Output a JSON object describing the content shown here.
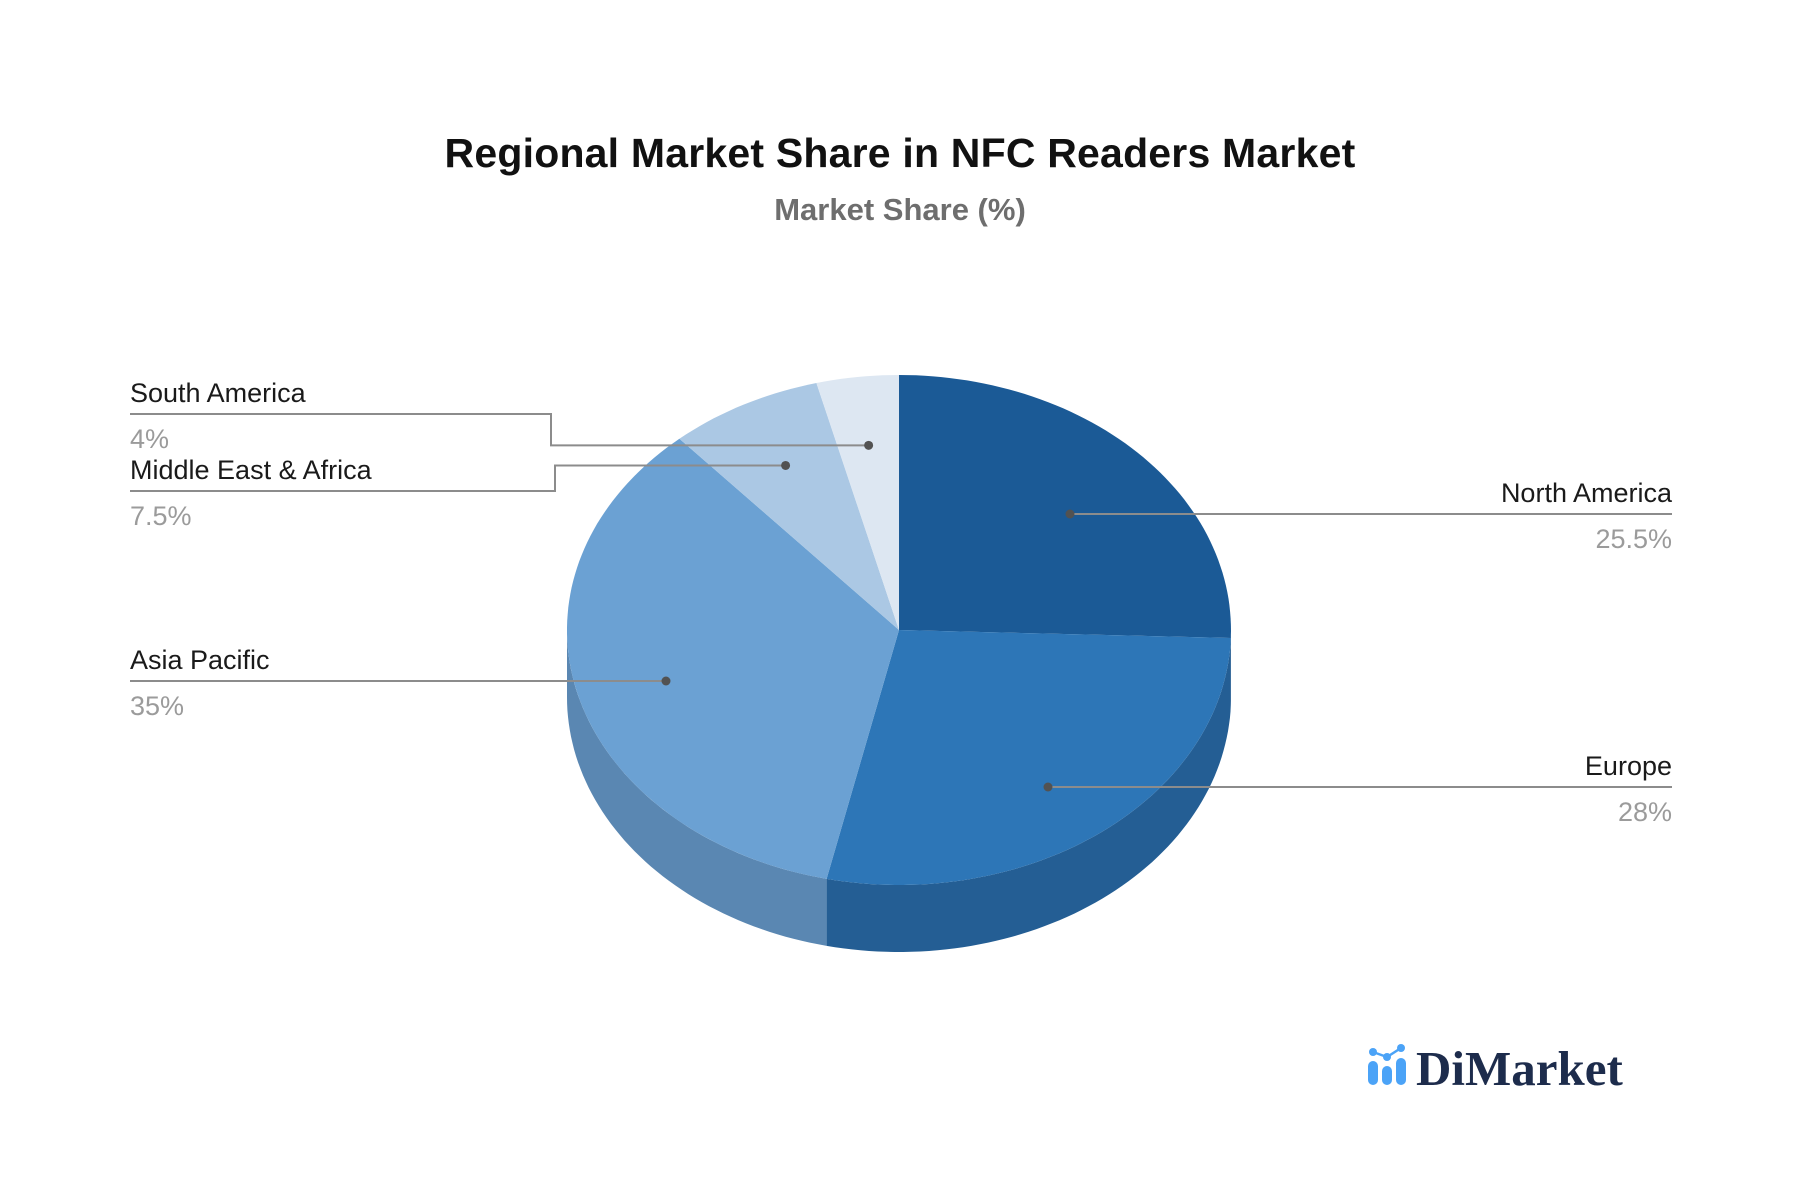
{
  "brand": {
    "name": "DiMarket"
  },
  "colors": {
    "background": "#ffffff",
    "title_text": "#111111",
    "subtitle_text": "#6e6e6e",
    "label_text": "#1a1a1a",
    "value_text": "#9b9b9b",
    "connector_gray": "#8c8c8c",
    "logo_blue": "#4ba3f7",
    "logo_text_navy": "#1d2c4c"
  },
  "chart_data": {
    "type": "pie",
    "style": "3d-pie",
    "title": "Regional Market Share in NFC Readers Market",
    "subtitle": "Market Share (%)",
    "unit": "%",
    "start_angle": "12 o'clock",
    "direction": "clockwise",
    "legend_position": "callout-labels",
    "categories": [
      "North America",
      "Europe",
      "Asia Pacific",
      "Middle East & Africa",
      "South America"
    ],
    "values": [
      25.5,
      28,
      35,
      7.5,
      4
    ],
    "slices": [
      {
        "label": "North America",
        "value": 25.5,
        "display": "25.5%",
        "color": "#1b5a96",
        "rim_color": "#15487a"
      },
      {
        "label": "Europe",
        "value": 28,
        "display": "28%",
        "color": "#2d76b7",
        "rim_color": "#245e94"
      },
      {
        "label": "Asia Pacific",
        "value": 35,
        "display": "35%",
        "color": "#6ba1d3",
        "rim_color": "#5a87b2"
      },
      {
        "label": "Middle East & Africa",
        "value": 7.5,
        "display": "7.5%",
        "color": "#abc8e4",
        "rim_color": "#93b6d8"
      },
      {
        "label": "South America",
        "value": 4,
        "display": "4%",
        "color": "#dde7f2",
        "rim_color": "#c6d6ea"
      }
    ]
  }
}
